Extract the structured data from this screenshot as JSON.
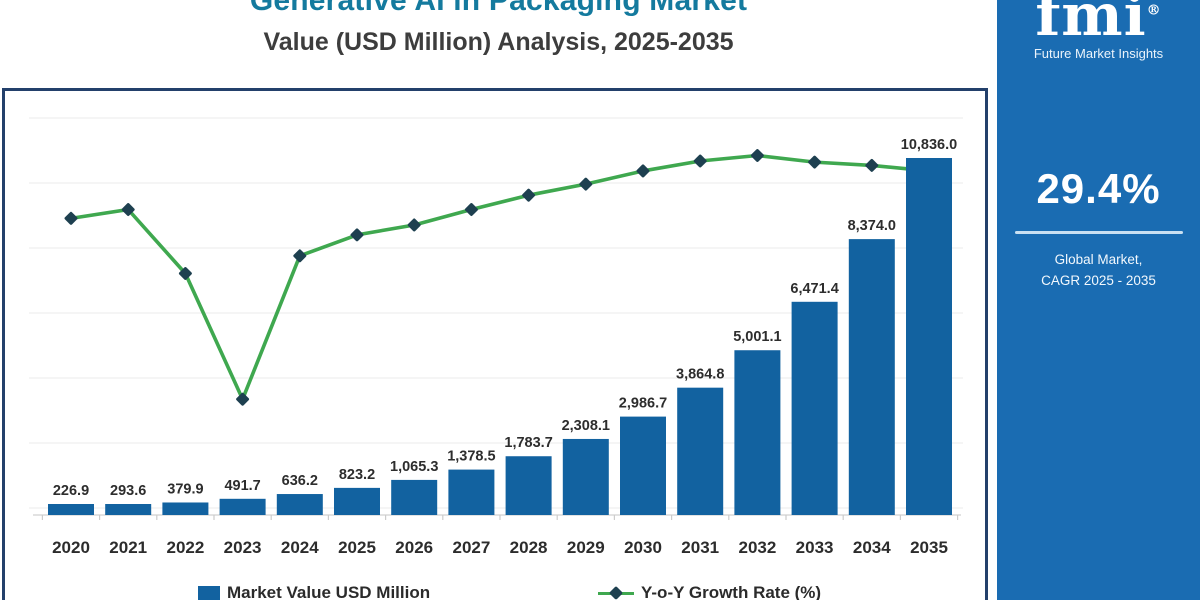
{
  "header": {
    "title_line1": "Generative AI in Packaging Market",
    "title_line2": "Value (USD Million) Analysis, 2025-2035"
  },
  "sidebar": {
    "logo_text": "fmi",
    "logo_reg": "®",
    "logo_subtext": "Future Market Insights",
    "cagr_value": "29.4%",
    "cagr_caption_line1": "Global Market,",
    "cagr_caption_line2": "CAGR 2025 - 2035",
    "background_color": "#1a6cb2"
  },
  "legend": {
    "bar_label": "Market Value USD Million",
    "line_label": "Y-o-Y Growth Rate (%)"
  },
  "chart_data": {
    "type": "bar",
    "subtype": "bar-line-combo",
    "title": "Generative AI in Packaging Market Value (USD Million) Analysis, 2025-2035",
    "xlabel": "",
    "ylabel": "",
    "categories": [
      "2020",
      "2021",
      "2022",
      "2023",
      "2024",
      "2025",
      "2026",
      "2027",
      "2028",
      "2029",
      "2030",
      "2031",
      "2032",
      "2033",
      "2034",
      "2035"
    ],
    "series": [
      {
        "name": "Market Value USD Million",
        "type": "bar",
        "color": "#1262a0",
        "values": [
          226.9,
          293.6,
          379.9,
          491.7,
          636.2,
          823.2,
          1065.3,
          1378.5,
          1783.7,
          2308.1,
          2986.7,
          3864.8,
          5001.1,
          6471.4,
          8374.0,
          10836.0
        ],
        "value_labels": [
          "226.9",
          "293.6",
          "379.9",
          "491.7",
          "636.2",
          "823.2",
          "1,065.3",
          "1,378.5",
          "1,783.7",
          "2,308.1",
          "2,986.7",
          "3,864.8",
          "5,001.1",
          "6,471.4",
          "8,374.0",
          "10,836.0"
        ]
      },
      {
        "name": "Y-o-Y Growth Rate (%)",
        "type": "line",
        "color": "#3fa84f",
        "marker_color": "#1e4050",
        "values": [
          26.9,
          27.7,
          21.9,
          10.5,
          23.5,
          25.4,
          26.3,
          27.7,
          29.0,
          30.0,
          31.2,
          32.1,
          32.6,
          32.0,
          31.7,
          31.2
        ],
        "note": "growth-rate axis not labeled in figure; values estimated from line shape (dip at 2023, peak at 2032)"
      }
    ],
    "ylim": [
      0,
      11500
    ],
    "grid": "faint horizontal gridlines, no visible y-axis labels",
    "legend_position": "bottom"
  }
}
